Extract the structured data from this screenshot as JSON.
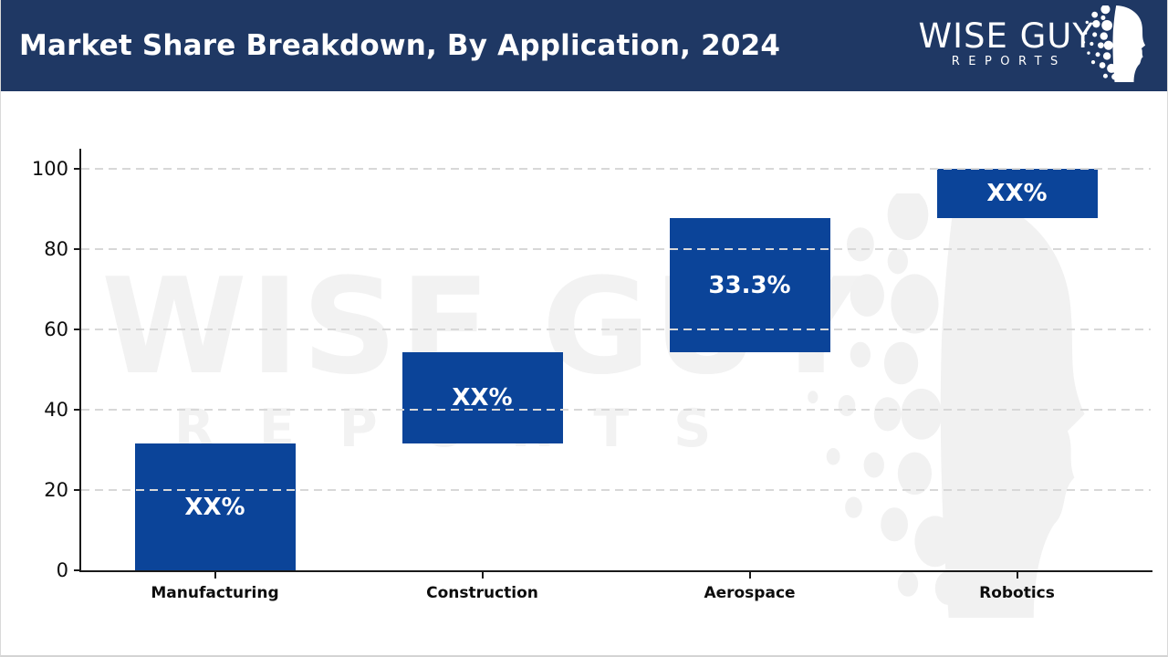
{
  "header": {
    "title": "Market Share Breakdown, By Application, 2024",
    "bg_color": "#1F3864",
    "brand": {
      "line1": "WISE GUY",
      "line2": "REPORTS"
    }
  },
  "watermark": {
    "line1": "WISE GUY",
    "line2": "REPORTS",
    "color": "#F2F2F2"
  },
  "chart_data": {
    "type": "bar",
    "subtype": "waterfall-floating-bars",
    "title": "Market Share Breakdown, By Application, 2024",
    "xlabel": "",
    "ylabel": "",
    "categories": [
      "Manufacturing",
      "Construction",
      "Aerospace",
      "Robotics"
    ],
    "segments": [
      {
        "category": "Manufacturing",
        "start": 0,
        "end": 31.5,
        "label": "XX%"
      },
      {
        "category": "Construction",
        "start": 31.5,
        "end": 54.3,
        "label": "XX%"
      },
      {
        "category": "Aerospace",
        "start": 54.3,
        "end": 87.7,
        "label": "33.3%"
      },
      {
        "category": "Robotics",
        "start": 87.7,
        "end": 100,
        "label": "XX%"
      }
    ],
    "yticks": [
      0,
      20,
      40,
      60,
      80,
      100
    ],
    "ylim": [
      0,
      105
    ],
    "grid": "horizontal-dashed",
    "grid_color": "#D8D8D8",
    "bar_color": "#0B4499",
    "bar_label_color": "#FFFFFF",
    "legend": "none"
  }
}
